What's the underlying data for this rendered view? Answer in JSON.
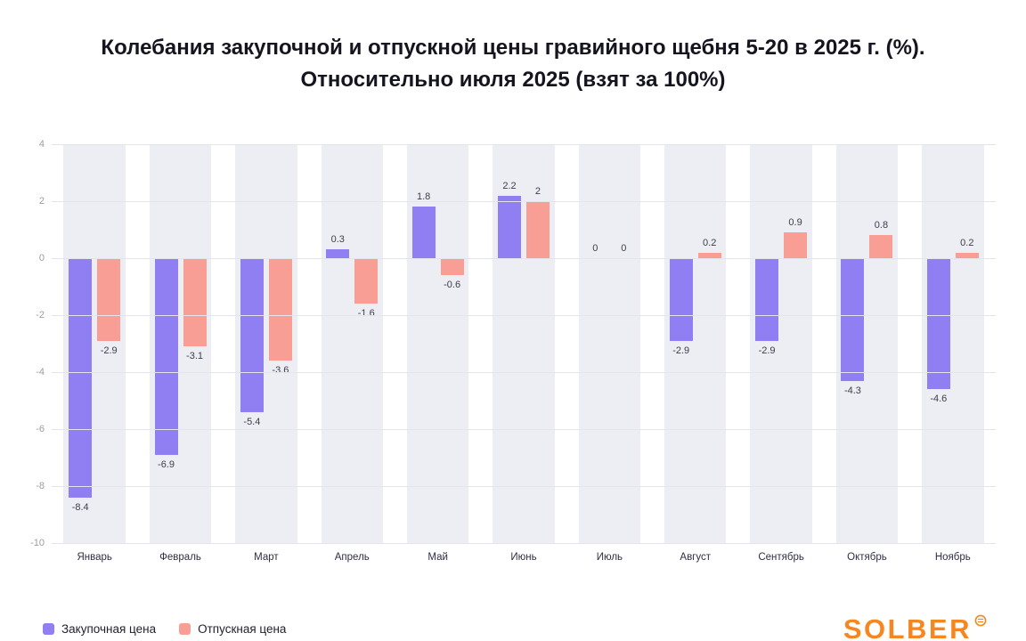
{
  "title": {
    "line1": "Колебания закупочной и отпускной цены гравийного щебня 5-20 в 2025 г. (%).",
    "line2": "Относительно июля 2025 (взят за 100%)"
  },
  "chart_data": {
    "type": "bar",
    "title": "Колебания закупочной и отпускной цены гравийного щебня 5-20 в 2025 г. (%). Относительно июля 2025 (взят за 100%)",
    "categories": [
      "Январь",
      "Февраль",
      "Март",
      "Апрель",
      "Май",
      "Июнь",
      "Июль",
      "Август",
      "Сентябрь",
      "Октябрь",
      "Ноябрь"
    ],
    "series": [
      {
        "name": "Закупочная цена",
        "color": "#8f7ff2",
        "values": [
          -8.4,
          -6.9,
          -5.4,
          0.3,
          1.8,
          2.2,
          0,
          -2.9,
          -2.9,
          -4.3,
          -4.6
        ]
      },
      {
        "name": "Отпускная цена",
        "color": "#f99e94",
        "values": [
          -2.9,
          -3.1,
          -3.6,
          -1.6,
          -0.6,
          2,
          0,
          0.2,
          0.9,
          0.8,
          0.2
        ]
      }
    ],
    "yticks": [
      4,
      2,
      0,
      -2,
      -4,
      -6,
      -8,
      -10
    ],
    "ylim": [
      -10,
      4
    ],
    "grid": true,
    "band_color": "#edeef3",
    "legend_position": "bottom-left",
    "xlabel": "",
    "ylabel": ""
  },
  "logo": {
    "text": "SOLBER",
    "color": "#f6861f"
  }
}
